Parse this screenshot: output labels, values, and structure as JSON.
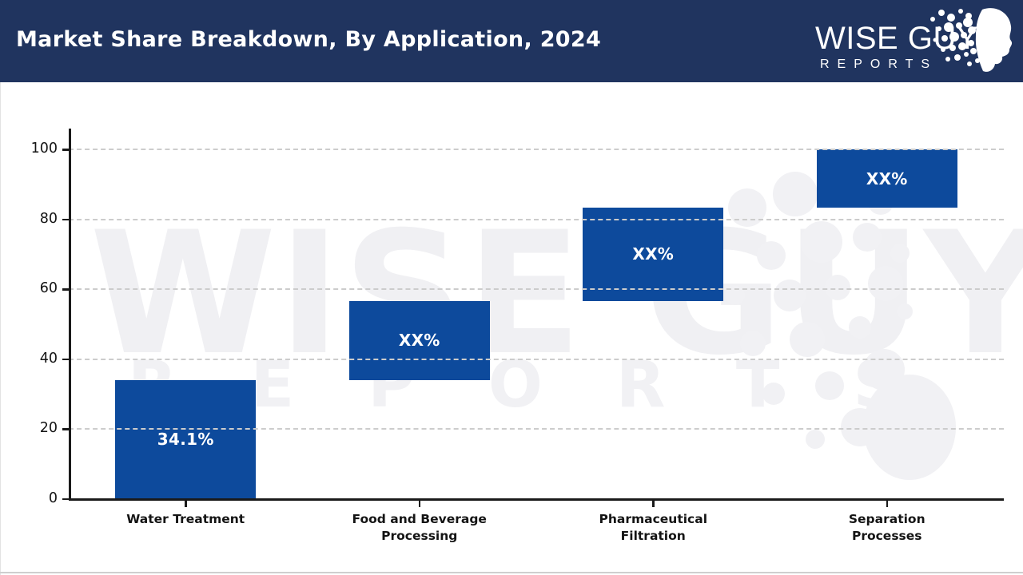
{
  "header": {
    "title": "Market Share Breakdown, By Application, 2024",
    "logo": {
      "brand_line1": "WISE GUY",
      "brand_line2": "REPORTS"
    }
  },
  "watermark": {
    "line1": "WISE GUY",
    "line2": "REPORTS"
  },
  "chart_data": {
    "type": "bar",
    "variant": "waterfall",
    "title": "Market Share Breakdown, By Application, 2024",
    "xlabel": "",
    "ylabel": "",
    "categories": [
      {
        "name": "Water Treatment",
        "lines": [
          "Water Treatment"
        ]
      },
      {
        "name": "Food and Beverage Processing",
        "lines": [
          "Food and Beverage",
          "Processing"
        ]
      },
      {
        "name": "Pharmaceutical Filtration",
        "lines": [
          "Pharmaceutical",
          "Filtration"
        ]
      },
      {
        "name": "Separation Processes",
        "lines": [
          "Separation",
          "Processes"
        ]
      }
    ],
    "segments": [
      {
        "category": "Water Treatment",
        "start": 0,
        "end": 34.1,
        "delta": 34.1,
        "label": "34.1%"
      },
      {
        "category": "Food and Beverage Processing",
        "start": 34.1,
        "end": 56.7,
        "delta": 22.6,
        "label": "XX%"
      },
      {
        "category": "Pharmaceutical Filtration",
        "start": 56.7,
        "end": 83.4,
        "delta": 26.7,
        "label": "XX%"
      },
      {
        "category": "Separation Processes",
        "start": 83.4,
        "end": 100,
        "delta": 16.6,
        "label": "XX%"
      }
    ],
    "yticks": [
      0,
      20,
      40,
      60,
      80,
      100
    ],
    "ylim": [
      0,
      106
    ],
    "grid": {
      "horizontal": true,
      "style": "dashed",
      "color": "#cccccc",
      "above_bars": true
    },
    "legend": "none",
    "colors": {
      "bar": "#0d4a9c",
      "bar_label": "#ffffff",
      "axis": "#1a1a1a",
      "tick_label": "#141414",
      "header_bg": "#20345f",
      "watermark": "#f0f0f3",
      "page_bg": "#ffffff"
    }
  }
}
